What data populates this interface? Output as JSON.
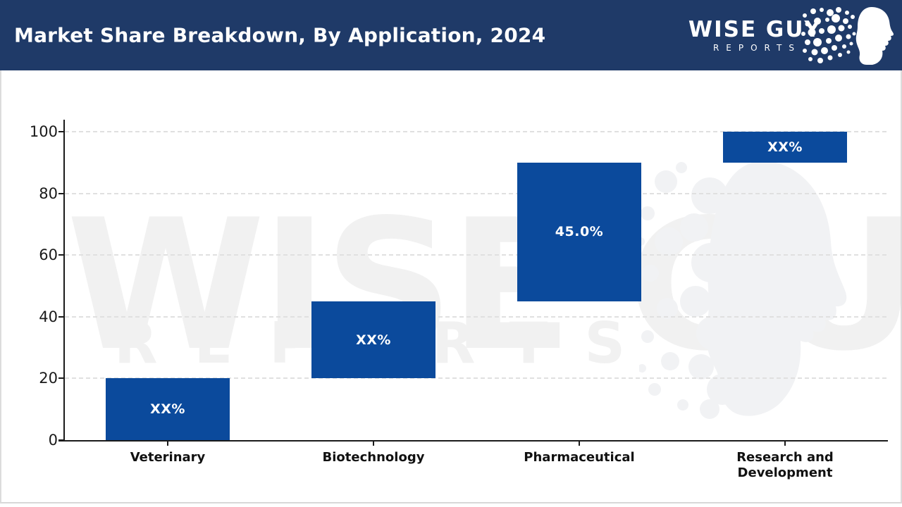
{
  "header": {
    "title": "Market Share Breakdown, By Application, 2024",
    "logo": {
      "wordmark": "WISE GUY",
      "subtitle": "REPORTS"
    }
  },
  "watermark": {
    "wordmark": "WISE GUY",
    "subtitle": "REPORTS"
  },
  "colors": {
    "header_bg": "#1f3a68",
    "bar": "#0b4a9c",
    "grid": "#e0e0e0",
    "axis": "#1a1a1a",
    "bar_label": "#ffffff",
    "watermark": "#f1f2f4"
  },
  "chart_data": {
    "type": "bar",
    "subtype": "waterfall",
    "title": "Market Share Breakdown, By Application, 2024",
    "categories": [
      "Veterinary",
      "Biotechnology",
      "Pharmaceutical",
      "Research and\nDevelopment"
    ],
    "segments": [
      {
        "category": "Veterinary",
        "start": 0,
        "end": 20,
        "label": "XX%"
      },
      {
        "category": "Biotechnology",
        "start": 20,
        "end": 45,
        "label": "XX%"
      },
      {
        "category": "Pharmaceutical",
        "start": 45,
        "end": 90,
        "label": "45.0%"
      },
      {
        "category": "Research and Development",
        "start": 90,
        "end": 100,
        "label": "XX%"
      }
    ],
    "ylim": [
      0,
      100
    ],
    "yticks": [
      0,
      20,
      40,
      60,
      80,
      100
    ],
    "xlabel": "",
    "ylabel": "",
    "grid": "horizontal-dashed",
    "legend": "none"
  }
}
